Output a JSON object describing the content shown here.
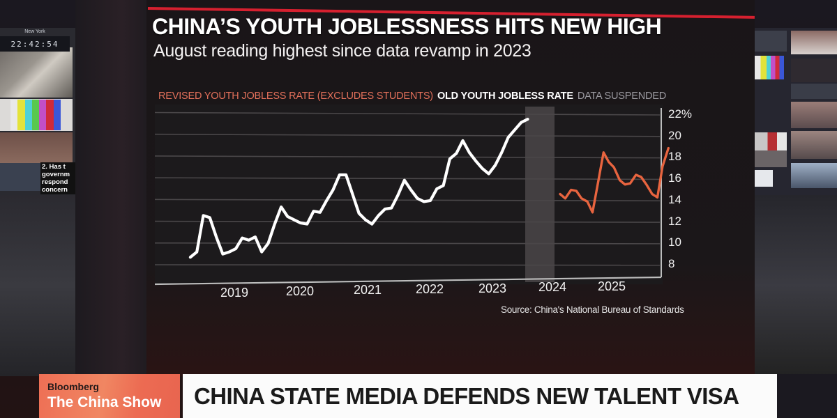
{
  "broadcast": {
    "network": "Bloomberg",
    "show": "The China Show",
    "headline": "CHINA STATE MEDIA DEFENDS NEW TALENT VISA",
    "studio_clock": {
      "city": "New York",
      "time": "22:42:54"
    },
    "side_monitor_text": [
      "2. Has t",
      "governm",
      "respond",
      "concern"
    ],
    "colors": {
      "show_box": "#ee6f55",
      "headline_bg": "#fbfbfb",
      "accent_red": "#d6202f"
    }
  },
  "graphic": {
    "title": "CHINA’S YOUTH JOBLESSNESS HITS NEW HIGH",
    "subtitle": "August reading highest since data revamp in 2023",
    "legend": {
      "revised": "REVISED YOUTH JOBLESS RATE (EXCLUDES STUDENTS)",
      "old": "OLD YOUTH JOBLESS RATE",
      "suspended": "DATA SUSPENDED"
    },
    "source": "Source: China's National Bureau of Standards"
  },
  "chart_data": {
    "type": "line",
    "title": "CHINA’S YOUTH JOBLESSNESS HITS NEW HIGH",
    "subtitle": "August reading highest since data revamp in 2023",
    "xlabel": "",
    "ylabel": "",
    "ylim": [
      8,
      22
    ],
    "y_ticks": [
      "22%",
      "20",
      "18",
      "16",
      "14",
      "12",
      "10",
      "8"
    ],
    "x_ticks": [
      "2019",
      "2020",
      "2021",
      "2022",
      "2023",
      "2024",
      "2025"
    ],
    "grid": true,
    "legend_position": "top",
    "colors": {
      "old": "#ffffff",
      "revised": "#e8643f",
      "suspended": "#4a4748"
    },
    "annotations": [
      {
        "type": "shaded_band",
        "label": "DATA SUSPENDED",
        "x_start": 2023.5,
        "x_end": 2023.95
      }
    ],
    "series": [
      {
        "name": "OLD YOUTH JOBLESS RATE",
        "x": [
          2018.3,
          2018.4,
          2018.5,
          2018.6,
          2018.7,
          2018.8,
          2018.9,
          2019.0,
          2019.1,
          2019.2,
          2019.3,
          2019.4,
          2019.5,
          2019.6,
          2019.7,
          2019.8,
          2019.9,
          2020.0,
          2020.1,
          2020.2,
          2020.3,
          2020.4,
          2020.5,
          2020.6,
          2020.7,
          2020.8,
          2020.9,
          2021.0,
          2021.1,
          2021.2,
          2021.3,
          2021.4,
          2021.5,
          2021.6,
          2021.7,
          2021.8,
          2021.9,
          2022.0,
          2022.1,
          2022.2,
          2022.3,
          2022.4,
          2022.5,
          2022.6,
          2022.7,
          2022.8,
          2022.9,
          2023.0,
          2023.1,
          2023.2,
          2023.3,
          2023.4,
          2023.5
        ],
        "values": [
          8.7,
          9.2,
          12.6,
          12.4,
          10.6,
          9.0,
          9.2,
          9.5,
          10.5,
          10.3,
          10.6,
          9.2,
          10.0,
          11.8,
          13.4,
          12.5,
          12.2,
          11.9,
          11.8,
          13.0,
          12.9,
          14.0,
          15.0,
          16.4,
          16.4,
          14.6,
          12.8,
          12.2,
          11.8,
          12.6,
          13.2,
          13.3,
          14.5,
          15.9,
          15.0,
          14.2,
          13.9,
          14.0,
          15.1,
          15.4,
          17.9,
          18.4,
          19.6,
          18.5,
          17.7,
          17.0,
          16.5,
          17.3,
          18.5,
          19.9,
          20.6,
          21.3,
          21.6
        ]
      },
      {
        "name": "REVISED YOUTH JOBLESS RATE (EXCLUDES STUDENTS)",
        "x": [
          2024.0,
          2024.08,
          2024.17,
          2024.25,
          2024.33,
          2024.42,
          2024.5,
          2024.58,
          2024.67,
          2024.75,
          2024.83,
          2024.92,
          2025.0,
          2025.08,
          2025.17,
          2025.25,
          2025.33,
          2025.42,
          2025.5,
          2025.58,
          2025.67
        ],
        "values": [
          14.6,
          14.2,
          15.0,
          14.9,
          14.2,
          13.9,
          12.9,
          15.5,
          18.5,
          17.6,
          17.1,
          15.9,
          15.5,
          15.6,
          16.4,
          16.2,
          15.5,
          14.6,
          14.3,
          17.2,
          18.9
        ]
      }
    ]
  }
}
